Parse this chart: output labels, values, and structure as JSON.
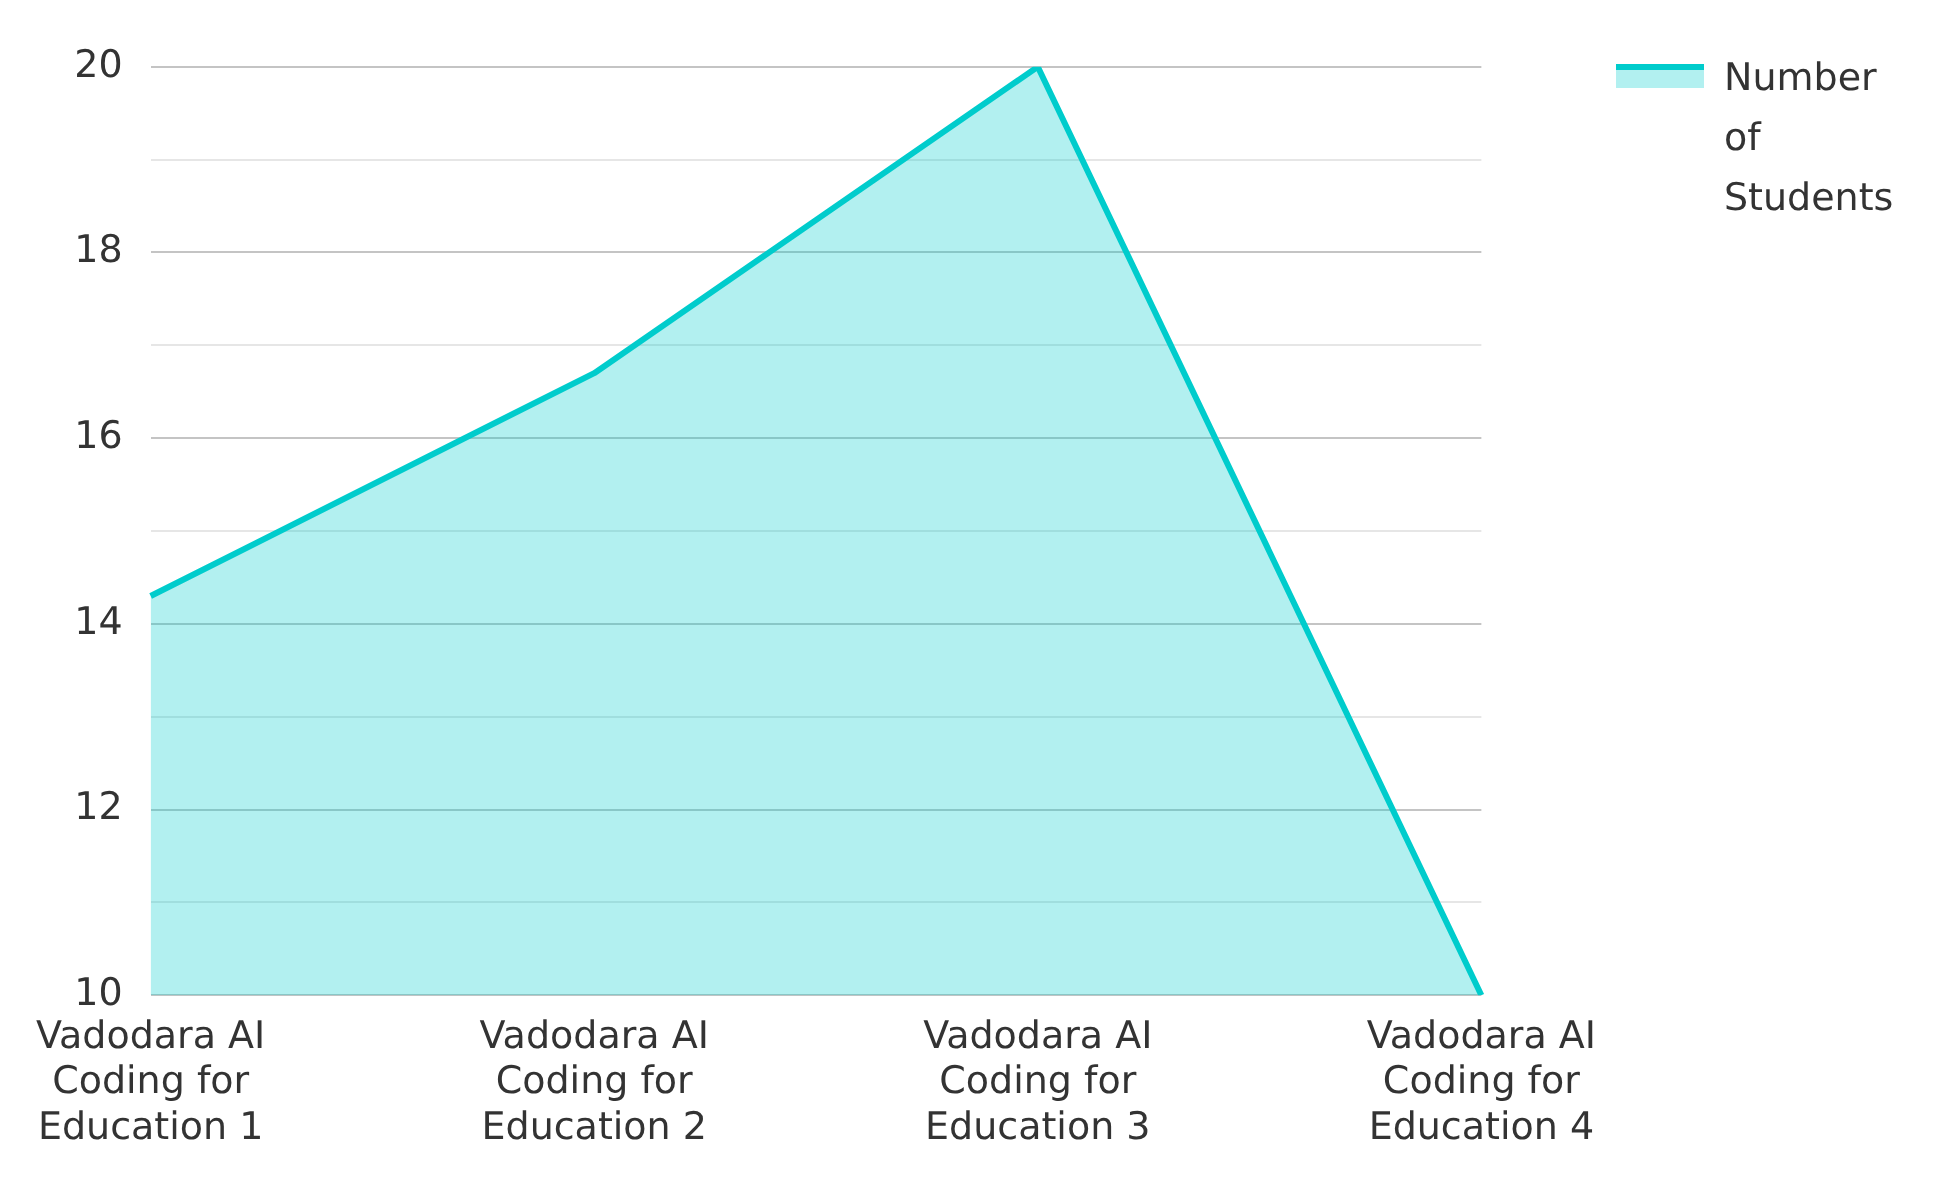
{
  "chart_data": {
    "type": "area",
    "categories": [
      "Vadodara AI Coding for Education 1",
      "Vadodara AI Coding for Education 2",
      "Vadodara AI Coding for Education 3",
      "Vadodara AI Coding for Education 4"
    ],
    "series": [
      {
        "name": "Number of Students",
        "color": "#00cccc",
        "values": [
          14.3,
          16.7,
          20,
          10
        ]
      }
    ],
    "ylim": [
      10,
      20
    ],
    "yticks": [
      10,
      {
        "value": 11,
        "label": null
      },
      12,
      {
        "value": 13,
        "label": null
      },
      14,
      {
        "value": 15,
        "label": null
      },
      16,
      {
        "value": 17,
        "label": null
      },
      18,
      {
        "value": 19,
        "label": null
      },
      20
    ],
    "grid": "y",
    "legend": "top right",
    "marker": "none"
  }
}
